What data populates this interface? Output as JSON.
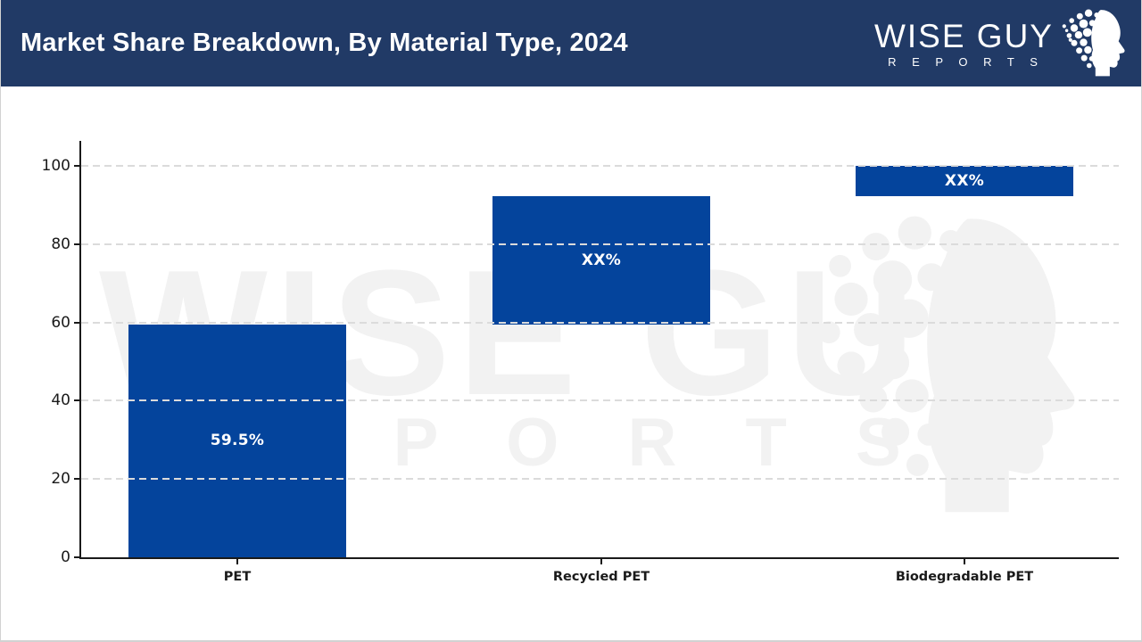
{
  "header": {
    "title": "Market Share Breakdown, By Material Type, 2024",
    "logo": {
      "line1": "WISE GUY",
      "line2": "R E P O R T S"
    }
  },
  "watermark": {
    "line1": "WISE GUY",
    "line2": "R E P O R T S"
  },
  "chart_data": {
    "type": "bar",
    "subtype": "waterfall",
    "title": "Market Share Breakdown, By Material Type, 2024",
    "categories": [
      "PET",
      "Recycled PET",
      "Biodegradable PET"
    ],
    "segments": [
      {
        "category": "PET",
        "start": 0,
        "end": 59.5,
        "label": "59.5%"
      },
      {
        "category": "Recycled PET",
        "start": 59.5,
        "end": 92.3,
        "label": "XX%"
      },
      {
        "category": "Biodegradable PET",
        "start": 92.3,
        "end": 100,
        "label": "XX%"
      }
    ],
    "ylim": [
      0,
      100
    ],
    "yticks": [
      0,
      20,
      40,
      60,
      80,
      100
    ],
    "xlabel": "",
    "ylabel": "",
    "grid": "horizontal-dashed",
    "legend": "none"
  },
  "colors": {
    "header_bg": "#213A66",
    "bar": "#04449C",
    "grid": "#DBDBDB",
    "axis": "#1A1A1A",
    "bar_label": "#FFFFFF",
    "watermark": "#F2F2F2",
    "frame_border": "#D2D2D2",
    "title_text": "#FFFFFF"
  }
}
